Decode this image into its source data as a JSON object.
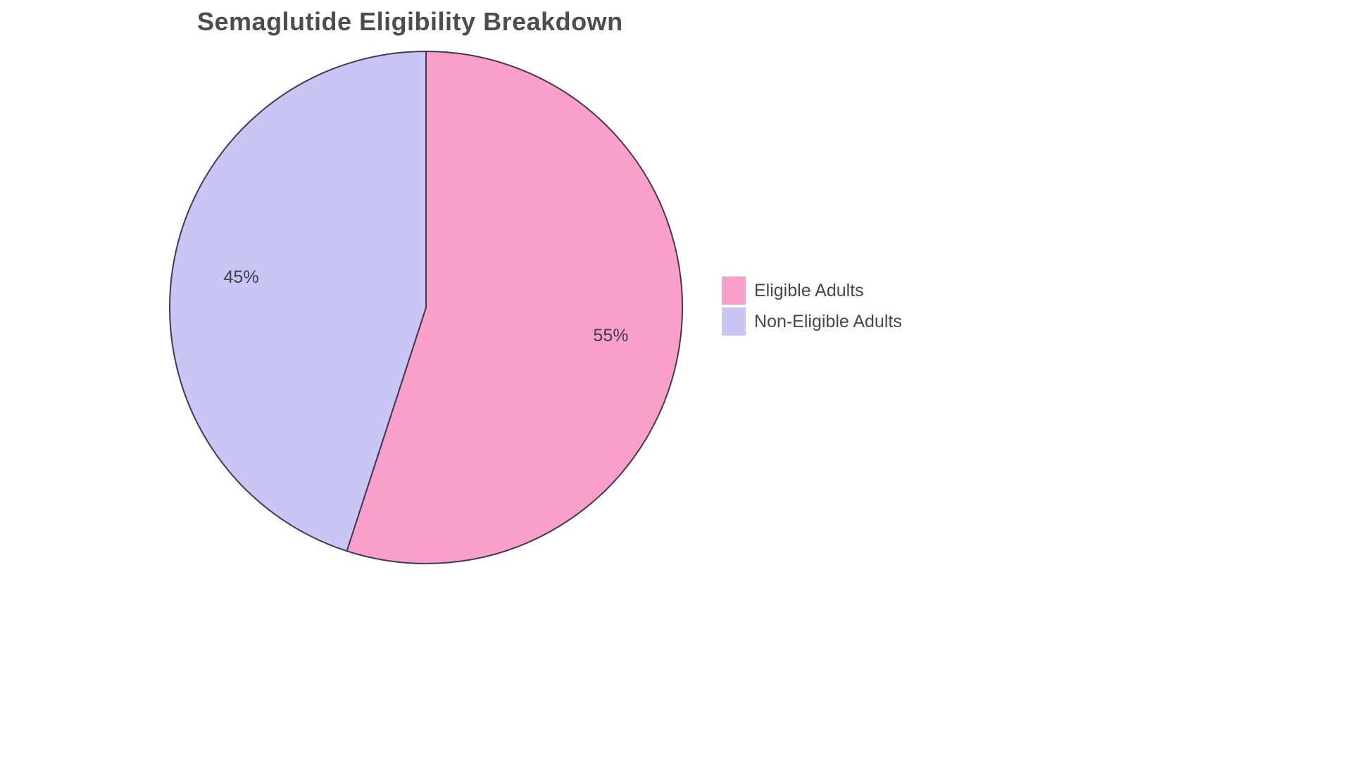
{
  "chart_data": {
    "type": "pie",
    "title": "Semaglutide Eligibility Breakdown",
    "labels": [
      "Eligible Adults",
      "Non-Eligible Adults"
    ],
    "values": [
      55,
      45
    ],
    "value_labels": [
      "55%",
      "45%"
    ],
    "colors": [
      "#F99FC9",
      "#C9C5F4"
    ],
    "outline_color": "#3E3A56",
    "label_color": "#3F3D4E",
    "background": "#FFFFFF",
    "legend_position": "right",
    "start_angle_deg": 0,
    "direction": "clockwise"
  }
}
